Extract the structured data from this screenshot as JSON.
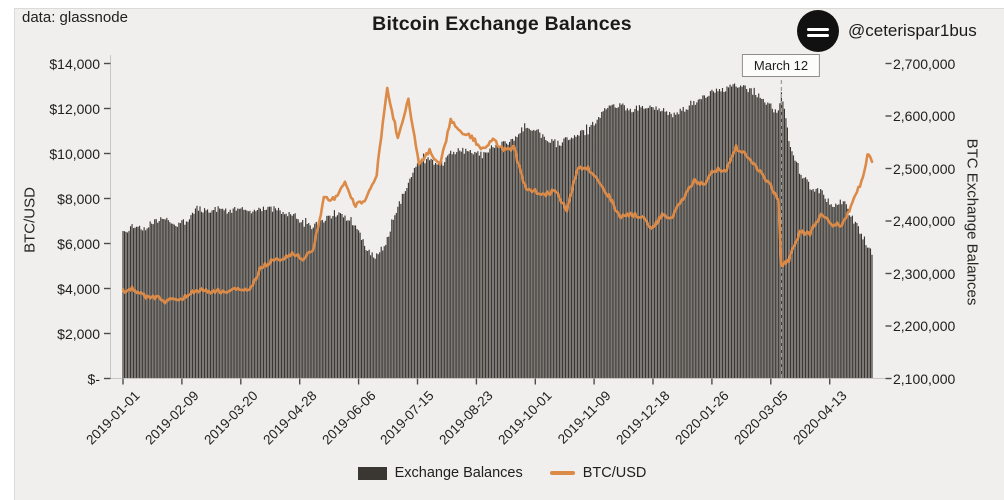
{
  "header": {
    "source": "data: glassnode",
    "handle": "@ceterispar1bus",
    "avatar_icon": "equals-lines-icon"
  },
  "colors": {
    "panel_background": "#f0efed",
    "bars": "#3a3632",
    "price_line": "#dc8a48",
    "text": "#201f1d",
    "annotation_dash": "#a09e9a",
    "avatar_background": "#111111"
  },
  "chart_data": {
    "type": "bar+line",
    "title": "Bitcoin Exchange Balances",
    "grid": false,
    "left_axis": {
      "label": "BTC/USD",
      "range": [
        0,
        14000
      ],
      "ticks": [
        {
          "label": "$14,000",
          "value": 14000
        },
        {
          "label": "$12,000",
          "value": 12000
        },
        {
          "label": "$10,000",
          "value": 10000
        },
        {
          "label": "$8,000",
          "value": 8000
        },
        {
          "label": "$6,000",
          "value": 6000
        },
        {
          "label": "$4,000",
          "value": 4000
        },
        {
          "label": "$2,000",
          "value": 2000
        },
        {
          "label": "$-",
          "value": 0
        }
      ]
    },
    "right_axis": {
      "label": "BTC Exchange Balances",
      "range": [
        2100000,
        2700000
      ],
      "ticks": [
        {
          "label": "2,700,000",
          "value": 2700000
        },
        {
          "label": "2,600,000",
          "value": 2600000
        },
        {
          "label": "2,500,000",
          "value": 2500000
        },
        {
          "label": "2,400,000",
          "value": 2400000
        },
        {
          "label": "2,300,000",
          "value": 2300000
        },
        {
          "label": "2,200,000",
          "value": 2200000
        },
        {
          "label": "2,100,000",
          "value": 2100000
        }
      ]
    },
    "x_axis": {
      "tick_labels": [
        "2019-01-01",
        "2019-02-09",
        "2019-03-20",
        "2019-04-28",
        "2019-06-06",
        "2019-07-15",
        "2019-08-23",
        "2019-10-01",
        "2019-11-09",
        "2019-12-18",
        "2020-01-26",
        "2020-03-05",
        "2020-04-13"
      ]
    },
    "annotation": {
      "text": "March 12",
      "date": "2020-03-12"
    },
    "legend": [
      {
        "label": "Exchange Balances",
        "color": "#3a3632",
        "type": "bar"
      },
      {
        "label": "BTC/USD",
        "color": "#dc8a48",
        "type": "line"
      }
    ],
    "series": {
      "dates": [
        "2019-01-01",
        "2019-01-08",
        "2019-01-15",
        "2019-01-22",
        "2019-01-29",
        "2019-02-05",
        "2019-02-12",
        "2019-02-19",
        "2019-02-26",
        "2019-03-05",
        "2019-03-12",
        "2019-03-19",
        "2019-03-26",
        "2019-04-02",
        "2019-04-09",
        "2019-04-16",
        "2019-04-23",
        "2019-04-30",
        "2019-05-07",
        "2019-05-14",
        "2019-05-21",
        "2019-05-28",
        "2019-06-04",
        "2019-06-11",
        "2019-06-18",
        "2019-06-25",
        "2019-07-02",
        "2019-07-09",
        "2019-07-16",
        "2019-07-23",
        "2019-07-30",
        "2019-08-06",
        "2019-08-13",
        "2019-08-20",
        "2019-08-27",
        "2019-09-03",
        "2019-09-10",
        "2019-09-17",
        "2019-09-24",
        "2019-10-01",
        "2019-10-08",
        "2019-10-15",
        "2019-10-22",
        "2019-10-29",
        "2019-11-05",
        "2019-11-12",
        "2019-11-19",
        "2019-11-26",
        "2019-12-03",
        "2019-12-10",
        "2019-12-17",
        "2019-12-24",
        "2019-12-31",
        "2020-01-07",
        "2020-01-14",
        "2020-01-21",
        "2020-01-28",
        "2020-02-04",
        "2020-02-11",
        "2020-02-18",
        "2020-02-25",
        "2020-03-03",
        "2020-03-10",
        "2020-03-12",
        "2020-03-17",
        "2020-03-24",
        "2020-03-31",
        "2020-04-07",
        "2020-04-14",
        "2020-04-21",
        "2020-04-28",
        "2020-05-05",
        "2020-05-08",
        "2020-05-11"
      ],
      "btc_usd": [
        3850,
        4000,
        3650,
        3600,
        3450,
        3470,
        3620,
        3950,
        3850,
        3870,
        3880,
        4050,
        3950,
        4900,
        5200,
        5250,
        5500,
        5350,
        5780,
        7980,
        7950,
        8700,
        7700,
        7950,
        9100,
        12900,
        10700,
        12400,
        9500,
        10100,
        9500,
        11450,
        10900,
        10750,
        10150,
        10600,
        10150,
        10250,
        8550,
        8300,
        8200,
        8350,
        7450,
        9400,
        9300,
        8750,
        8100,
        7150,
        7300,
        7250,
        6650,
        7250,
        7200,
        8050,
        8800,
        8650,
        9300,
        9150,
        10250,
        9950,
        9300,
        8750,
        7950,
        4950,
        5300,
        6500,
        6450,
        7300,
        6850,
        6850,
        7750,
        8900,
        9950,
        9650
      ],
      "exchange_balance": [
        2375000,
        2390000,
        2385000,
        2398000,
        2402000,
        2388000,
        2400000,
        2422000,
        2418000,
        2423000,
        2418000,
        2422000,
        2416000,
        2421000,
        2423000,
        2417000,
        2408000,
        2396000,
        2388000,
        2398000,
        2414000,
        2408000,
        2390000,
        2348000,
        2328000,
        2365000,
        2425000,
        2470000,
        2515000,
        2515000,
        2505000,
        2525000,
        2535000,
        2530000,
        2525000,
        2540000,
        2545000,
        2555000,
        2580000,
        2575000,
        2555000,
        2545000,
        2555000,
        2565000,
        2570000,
        2600000,
        2615000,
        2620000,
        2610000,
        2615000,
        2620000,
        2610000,
        2600000,
        2610000,
        2625000,
        2635000,
        2650000,
        2650000,
        2660000,
        2650000,
        2640000,
        2625000,
        2600000,
        2645000,
        2555000,
        2495000,
        2465000,
        2455000,
        2430000,
        2435000,
        2405000,
        2370000,
        2350000,
        2330000
      ]
    }
  }
}
